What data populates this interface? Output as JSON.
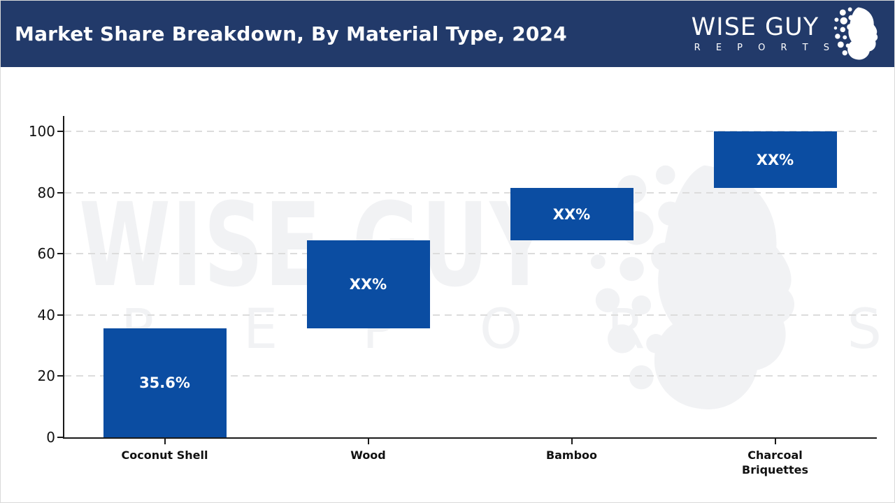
{
  "header": {
    "title": "Market Share Breakdown, By Material Type, 2024",
    "logo": {
      "name": "WISE GUY",
      "subtitle": "R E P O R T S"
    }
  },
  "watermark": {
    "name": "WISE GUY",
    "subtitle": "R E P O R T S"
  },
  "chart_data": {
    "type": "bar",
    "subtype": "waterfall",
    "title": "Market Share Breakdown, By Material Type, 2024",
    "categories": [
      "Coconut Shell",
      "Wood",
      "Bamboo",
      "Charcoal\nBriquettes"
    ],
    "bars": [
      {
        "category": "Coconut Shell",
        "start": 0,
        "end": 35.6,
        "label": "35.6%"
      },
      {
        "category": "Wood",
        "start": 35.6,
        "end": 64.3,
        "label": "XX%"
      },
      {
        "category": "Bamboo",
        "start": 64.3,
        "end": 81.5,
        "label": "XX%"
      },
      {
        "category": "Charcoal\nBriquettes",
        "start": 81.5,
        "end": 100,
        "label": "XX%"
      }
    ],
    "ylim": [
      0,
      100
    ],
    "yticks": [
      0,
      20,
      40,
      60,
      80,
      100
    ],
    "xlabel": "",
    "ylabel": "",
    "grid": "horizontal-dashed",
    "legend": "none",
    "bar_color": "#0B4DA2",
    "bar_label_color": "#FFFFFF"
  },
  "colors": {
    "header_bg": "#223A6A",
    "header_text": "#FFFFFF",
    "bar": "#0B4DA2",
    "grid": "#DCDCDC",
    "axis": "#1A1A1A",
    "watermark": "#F1F2F4"
  }
}
